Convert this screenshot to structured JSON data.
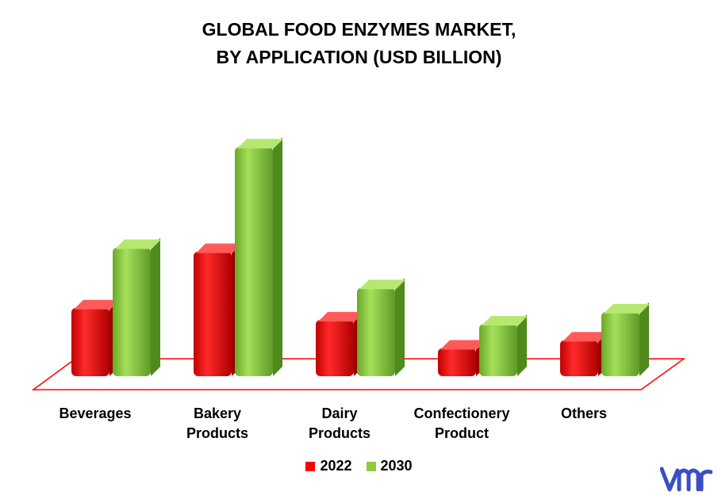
{
  "chart_data": {
    "type": "bar",
    "title_lines": [
      "GLOBAL FOOD ENZYMES MARKET,",
      "BY APPLICATION (USD BILLION)"
    ],
    "categories": [
      {
        "lines": [
          "Beverages"
        ]
      },
      {
        "lines": [
          "Bakery",
          "Products"
        ]
      },
      {
        "lines": [
          "Dairy",
          "Products"
        ]
      },
      {
        "lines": [
          "Confectionery",
          "Product"
        ]
      },
      {
        "lines": [
          "Others"
        ]
      }
    ],
    "series": [
      {
        "name": "2022",
        "color": "#ff0000",
        "values": [
          0.85,
          1.55,
          0.7,
          0.35,
          0.45
        ]
      },
      {
        "name": "2030",
        "color": "#8ccc3c",
        "values": [
          1.6,
          2.85,
          1.1,
          0.65,
          0.8
        ]
      }
    ],
    "ylim": [
      0,
      3.1
    ],
    "grid": false,
    "legend_position": "bottom"
  },
  "brand": {
    "logo_color": "#3a4fc4",
    "logo_icon": "vmr-logo"
  }
}
